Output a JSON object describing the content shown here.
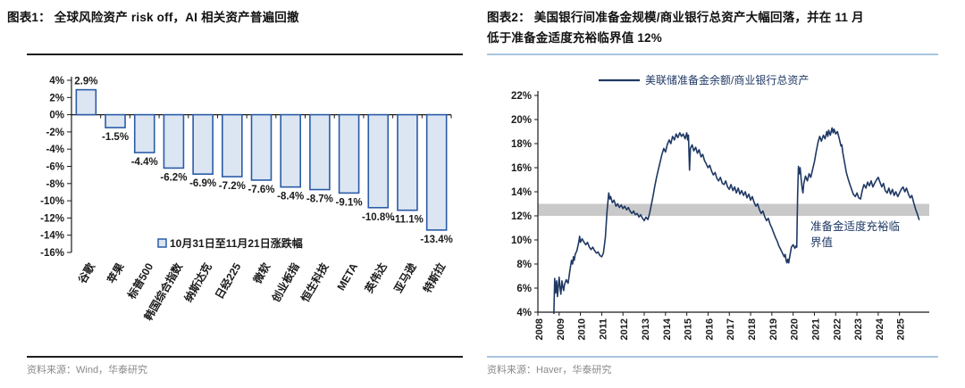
{
  "page": {
    "background": "#ffffff"
  },
  "left_panel": {
    "title": "图表1：  全球风险资产 risk off，AI 相关资产普遍回撤",
    "source": "资料来源：Wind，华泰研究"
  },
  "right_panel": {
    "title_line1": "图表2：  美国银行间准备金规模/商业银行总资产大幅回落，并在 11 月",
    "title_line2": "低于准备金适度充裕临界值 12%",
    "source": "资料来源：Haver，华泰研究"
  },
  "colors": {
    "bar_fill": "#dce6f2",
    "bar_border": "#2a5ba8",
    "line_navy": "#1f3864",
    "band_gray": "#c9c9c9",
    "axis_black": "#1a1a1a",
    "rule_dark": "#1d1d1d",
    "rule_light": "#a9c6e0",
    "source_gray": "#8a8a8a"
  },
  "chart_data": [
    {
      "type": "bar",
      "title": "全球风险资产 risk off，AI 相关资产普遍回撤",
      "legend": "10月31日至11月21日涨跌幅",
      "legend_position": "bottom-center-inside",
      "categories": [
        "谷歌",
        "苹果",
        "标普500",
        "韩国综合指数",
        "纳斯达克",
        "日经225",
        "微软",
        "创业板指",
        "恒生科技",
        "META",
        "英伟达",
        "亚马逊",
        "特斯拉"
      ],
      "values": [
        2.9,
        -1.5,
        -4.4,
        -6.2,
        -6.9,
        -7.2,
        -7.6,
        -8.4,
        -8.7,
        -9.1,
        -10.8,
        -11.1,
        -13.4
      ],
      "value_label_format": "0.0%",
      "ylim": [
        -16,
        4
      ],
      "ytick_step": 2,
      "ytick_labels": [
        "4%",
        "2%",
        "0%",
        "-2%",
        "-4%",
        "-6%",
        "-8%",
        "-10%",
        "-12%",
        "-14%",
        "-16%"
      ],
      "grid": false,
      "bar_fill": "#dce6f2",
      "bar_border": "#2a5ba8"
    },
    {
      "type": "line",
      "title": "美国银行间准备金规模/商业银行总资产大幅回落，并在 11 月低于准备金适度充裕临界值 12%",
      "legend": "美联储准备金余额/商业银行总资产",
      "legend_position": "top-center",
      "xlabel": "",
      "ylabel": "",
      "ylim": [
        4,
        22
      ],
      "ytick_step": 2,
      "ytick_labels": [
        "22%",
        "20%",
        "18%",
        "16%",
        "14%",
        "12%",
        "10%",
        "8%",
        "6%",
        "4%"
      ],
      "xlim": [
        2008,
        2026.4
      ],
      "x_ticks": [
        "2008",
        "2009",
        "2010",
        "2011",
        "2012",
        "2013",
        "2014",
        "2015",
        "2016",
        "2017",
        "2018",
        "2019",
        "2020",
        "2021",
        "2022",
        "2023",
        "2024",
        "2025"
      ],
      "grid": false,
      "line_color": "#1f3864",
      "band": {
        "from": 12,
        "to": 13,
        "color": "#c9c9c9",
        "label": "准备金适度充裕临界值",
        "label_lines": [
          "准备金适度充裕临",
          "界值"
        ]
      },
      "series": [
        {
          "name": "美联储准备金余额/商业银行总资产",
          "points": [
            [
              2008.75,
              3.9
            ],
            [
              2008.79,
              6.8
            ],
            [
              2008.83,
              5.6
            ],
            [
              2008.88,
              6.6
            ],
            [
              2008.92,
              5.3
            ],
            [
              2008.96,
              6.2
            ],
            [
              2009.0,
              6.9
            ],
            [
              2009.04,
              6.0
            ],
            [
              2009.08,
              5.5
            ],
            [
              2009.13,
              6.6
            ],
            [
              2009.17,
              6.1
            ],
            [
              2009.21,
              5.8
            ],
            [
              2009.25,
              6.3
            ],
            [
              2009.33,
              6.7
            ],
            [
              2009.42,
              6.4
            ],
            [
              2009.5,
              7.4
            ],
            [
              2009.58,
              8.3
            ],
            [
              2009.63,
              8.0
            ],
            [
              2009.67,
              8.6
            ],
            [
              2009.71,
              8.3
            ],
            [
              2009.75,
              8.8
            ],
            [
              2009.83,
              9.1
            ],
            [
              2009.92,
              9.8
            ],
            [
              2009.96,
              10.3
            ],
            [
              2010.0,
              9.8
            ],
            [
              2010.08,
              10.1
            ],
            [
              2010.17,
              9.8
            ],
            [
              2010.25,
              9.6
            ],
            [
              2010.33,
              9.8
            ],
            [
              2010.42,
              9.4
            ],
            [
              2010.5,
              9.2
            ],
            [
              2010.58,
              9.4
            ],
            [
              2010.67,
              9.1
            ],
            [
              2010.75,
              8.9
            ],
            [
              2010.83,
              9.0
            ],
            [
              2010.92,
              8.7
            ],
            [
              2011.0,
              8.6
            ],
            [
              2011.08,
              8.9
            ],
            [
              2011.17,
              10.2
            ],
            [
              2011.25,
              12.4
            ],
            [
              2011.33,
              13.9
            ],
            [
              2011.38,
              13.4
            ],
            [
              2011.42,
              13.6
            ],
            [
              2011.5,
              13.1
            ],
            [
              2011.58,
              13.3
            ],
            [
              2011.67,
              12.8
            ],
            [
              2011.75,
              13.0
            ],
            [
              2011.83,
              12.7
            ],
            [
              2011.92,
              12.9
            ],
            [
              2012.0,
              12.6
            ],
            [
              2012.08,
              12.8
            ],
            [
              2012.17,
              12.5
            ],
            [
              2012.25,
              12.7
            ],
            [
              2012.33,
              12.4
            ],
            [
              2012.42,
              12.2
            ],
            [
              2012.5,
              12.4
            ],
            [
              2012.58,
              12.1
            ],
            [
              2012.67,
              12.2
            ],
            [
              2012.75,
              11.9
            ],
            [
              2012.83,
              12.1
            ],
            [
              2012.92,
              11.8
            ],
            [
              2013.0,
              11.6
            ],
            [
              2013.08,
              11.9
            ],
            [
              2013.17,
              11.7
            ],
            [
              2013.25,
              12.2
            ],
            [
              2013.33,
              12.9
            ],
            [
              2013.42,
              13.7
            ],
            [
              2013.5,
              14.5
            ],
            [
              2013.58,
              15.2
            ],
            [
              2013.67,
              15.9
            ],
            [
              2013.75,
              16.5
            ],
            [
              2013.83,
              17.1
            ],
            [
              2013.92,
              17.6
            ],
            [
              2014.0,
              17.3
            ],
            [
              2014.08,
              17.9
            ],
            [
              2014.17,
              18.3
            ],
            [
              2014.25,
              18.0
            ],
            [
              2014.33,
              18.6
            ],
            [
              2014.42,
              18.3
            ],
            [
              2014.5,
              18.8
            ],
            [
              2014.58,
              18.5
            ],
            [
              2014.67,
              18.9
            ],
            [
              2014.75,
              18.6
            ],
            [
              2014.83,
              18.8
            ],
            [
              2014.92,
              18.4
            ],
            [
              2015.0,
              18.9
            ],
            [
              2015.04,
              18.3
            ],
            [
              2015.08,
              18.7
            ],
            [
              2015.13,
              15.8
            ],
            [
              2015.17,
              17.6
            ],
            [
              2015.25,
              17.9
            ],
            [
              2015.33,
              17.4
            ],
            [
              2015.42,
              17.7
            ],
            [
              2015.5,
              17.2
            ],
            [
              2015.58,
              17.5
            ],
            [
              2015.67,
              16.9
            ],
            [
              2015.75,
              17.1
            ],
            [
              2015.83,
              16.6
            ],
            [
              2015.92,
              16.3
            ],
            [
              2016.0,
              16.0
            ],
            [
              2016.08,
              16.2
            ],
            [
              2016.17,
              15.7
            ],
            [
              2016.25,
              15.4
            ],
            [
              2016.33,
              15.6
            ],
            [
              2016.42,
              15.1
            ],
            [
              2016.5,
              14.9
            ],
            [
              2016.58,
              15.2
            ],
            [
              2016.67,
              14.7
            ],
            [
              2016.75,
              14.6
            ],
            [
              2016.83,
              14.9
            ],
            [
              2016.92,
              14.4
            ],
            [
              2017.0,
              14.2
            ],
            [
              2017.08,
              14.6
            ],
            [
              2017.17,
              14.1
            ],
            [
              2017.25,
              14.4
            ],
            [
              2017.33,
              13.9
            ],
            [
              2017.42,
              14.3
            ],
            [
              2017.5,
              13.8
            ],
            [
              2017.58,
              14.1
            ],
            [
              2017.67,
              13.7
            ],
            [
              2017.75,
              14.0
            ],
            [
              2017.83,
              13.5
            ],
            [
              2017.92,
              13.8
            ],
            [
              2018.0,
              13.3
            ],
            [
              2018.08,
              13.6
            ],
            [
              2018.17,
              13.1
            ],
            [
              2018.25,
              12.8
            ],
            [
              2018.33,
              13.0
            ],
            [
              2018.42,
              12.5
            ],
            [
              2018.5,
              12.2
            ],
            [
              2018.58,
              12.4
            ],
            [
              2018.67,
              11.9
            ],
            [
              2018.75,
              11.6
            ],
            [
              2018.83,
              11.8
            ],
            [
              2018.92,
              11.3
            ],
            [
              2019.0,
              11.0
            ],
            [
              2019.08,
              10.6
            ],
            [
              2019.17,
              10.2
            ],
            [
              2019.25,
              9.9
            ],
            [
              2019.33,
              9.5
            ],
            [
              2019.42,
              9.2
            ],
            [
              2019.5,
              8.9
            ],
            [
              2019.58,
              8.6
            ],
            [
              2019.63,
              8.8
            ],
            [
              2019.67,
              8.3
            ],
            [
              2019.71,
              8.1
            ],
            [
              2019.75,
              8.4
            ],
            [
              2019.79,
              8.1
            ],
            [
              2019.83,
              8.5
            ],
            [
              2019.92,
              9.4
            ],
            [
              2020.0,
              9.6
            ],
            [
              2020.08,
              9.3
            ],
            [
              2020.13,
              9.5
            ],
            [
              2020.17,
              9.4
            ],
            [
              2020.21,
              13.8
            ],
            [
              2020.25,
              16.1
            ],
            [
              2020.29,
              15.5
            ],
            [
              2020.33,
              16.0
            ],
            [
              2020.38,
              15.0
            ],
            [
              2020.42,
              14.3
            ],
            [
              2020.46,
              13.9
            ],
            [
              2020.5,
              14.7
            ],
            [
              2020.58,
              15.3
            ],
            [
              2020.67,
              14.9
            ],
            [
              2020.75,
              15.5
            ],
            [
              2020.83,
              15.2
            ],
            [
              2020.92,
              15.9
            ],
            [
              2021.0,
              16.5
            ],
            [
              2021.08,
              17.3
            ],
            [
              2021.17,
              18.1
            ],
            [
              2021.25,
              18.6
            ],
            [
              2021.33,
              18.2
            ],
            [
              2021.42,
              18.7
            ],
            [
              2021.5,
              18.4
            ],
            [
              2021.58,
              19.0
            ],
            [
              2021.63,
              18.6
            ],
            [
              2021.67,
              19.1
            ],
            [
              2021.75,
              18.7
            ],
            [
              2021.83,
              19.3
            ],
            [
              2021.88,
              18.9
            ],
            [
              2021.92,
              19.2
            ],
            [
              2022.0,
              18.8
            ],
            [
              2022.08,
              19.0
            ],
            [
              2022.17,
              18.4
            ],
            [
              2022.25,
              17.8
            ],
            [
              2022.29,
              17.9
            ],
            [
              2022.33,
              17.3
            ],
            [
              2022.42,
              16.4
            ],
            [
              2022.5,
              15.6
            ],
            [
              2022.58,
              15.1
            ],
            [
              2022.67,
              14.6
            ],
            [
              2022.75,
              14.2
            ],
            [
              2022.83,
              13.8
            ],
            [
              2022.92,
              13.6
            ],
            [
              2023.0,
              13.9
            ],
            [
              2023.08,
              13.5
            ],
            [
              2023.17,
              13.4
            ],
            [
              2023.25,
              14.1
            ],
            [
              2023.33,
              14.6
            ],
            [
              2023.42,
              14.3
            ],
            [
              2023.5,
              14.8
            ],
            [
              2023.58,
              14.5
            ],
            [
              2023.67,
              14.9
            ],
            [
              2023.75,
              14.4
            ],
            [
              2023.83,
              14.7
            ],
            [
              2023.92,
              15.0
            ],
            [
              2024.0,
              15.2
            ],
            [
              2024.08,
              14.8
            ],
            [
              2024.17,
              14.4
            ],
            [
              2024.25,
              14.7
            ],
            [
              2024.33,
              14.1
            ],
            [
              2024.42,
              13.9
            ],
            [
              2024.5,
              14.3
            ],
            [
              2024.58,
              13.8
            ],
            [
              2024.67,
              14.2
            ],
            [
              2024.75,
              13.7
            ],
            [
              2024.83,
              14.0
            ],
            [
              2024.92,
              13.6
            ],
            [
              2025.0,
              13.9
            ],
            [
              2025.08,
              14.2
            ],
            [
              2025.17,
              14.4
            ],
            [
              2025.25,
              14.0
            ],
            [
              2025.33,
              14.3
            ],
            [
              2025.42,
              13.8
            ],
            [
              2025.5,
              13.5
            ],
            [
              2025.58,
              13.7
            ],
            [
              2025.67,
              13.1
            ],
            [
              2025.75,
              12.6
            ],
            [
              2025.83,
              12.2
            ],
            [
              2025.92,
              11.7
            ]
          ]
        }
      ]
    }
  ]
}
